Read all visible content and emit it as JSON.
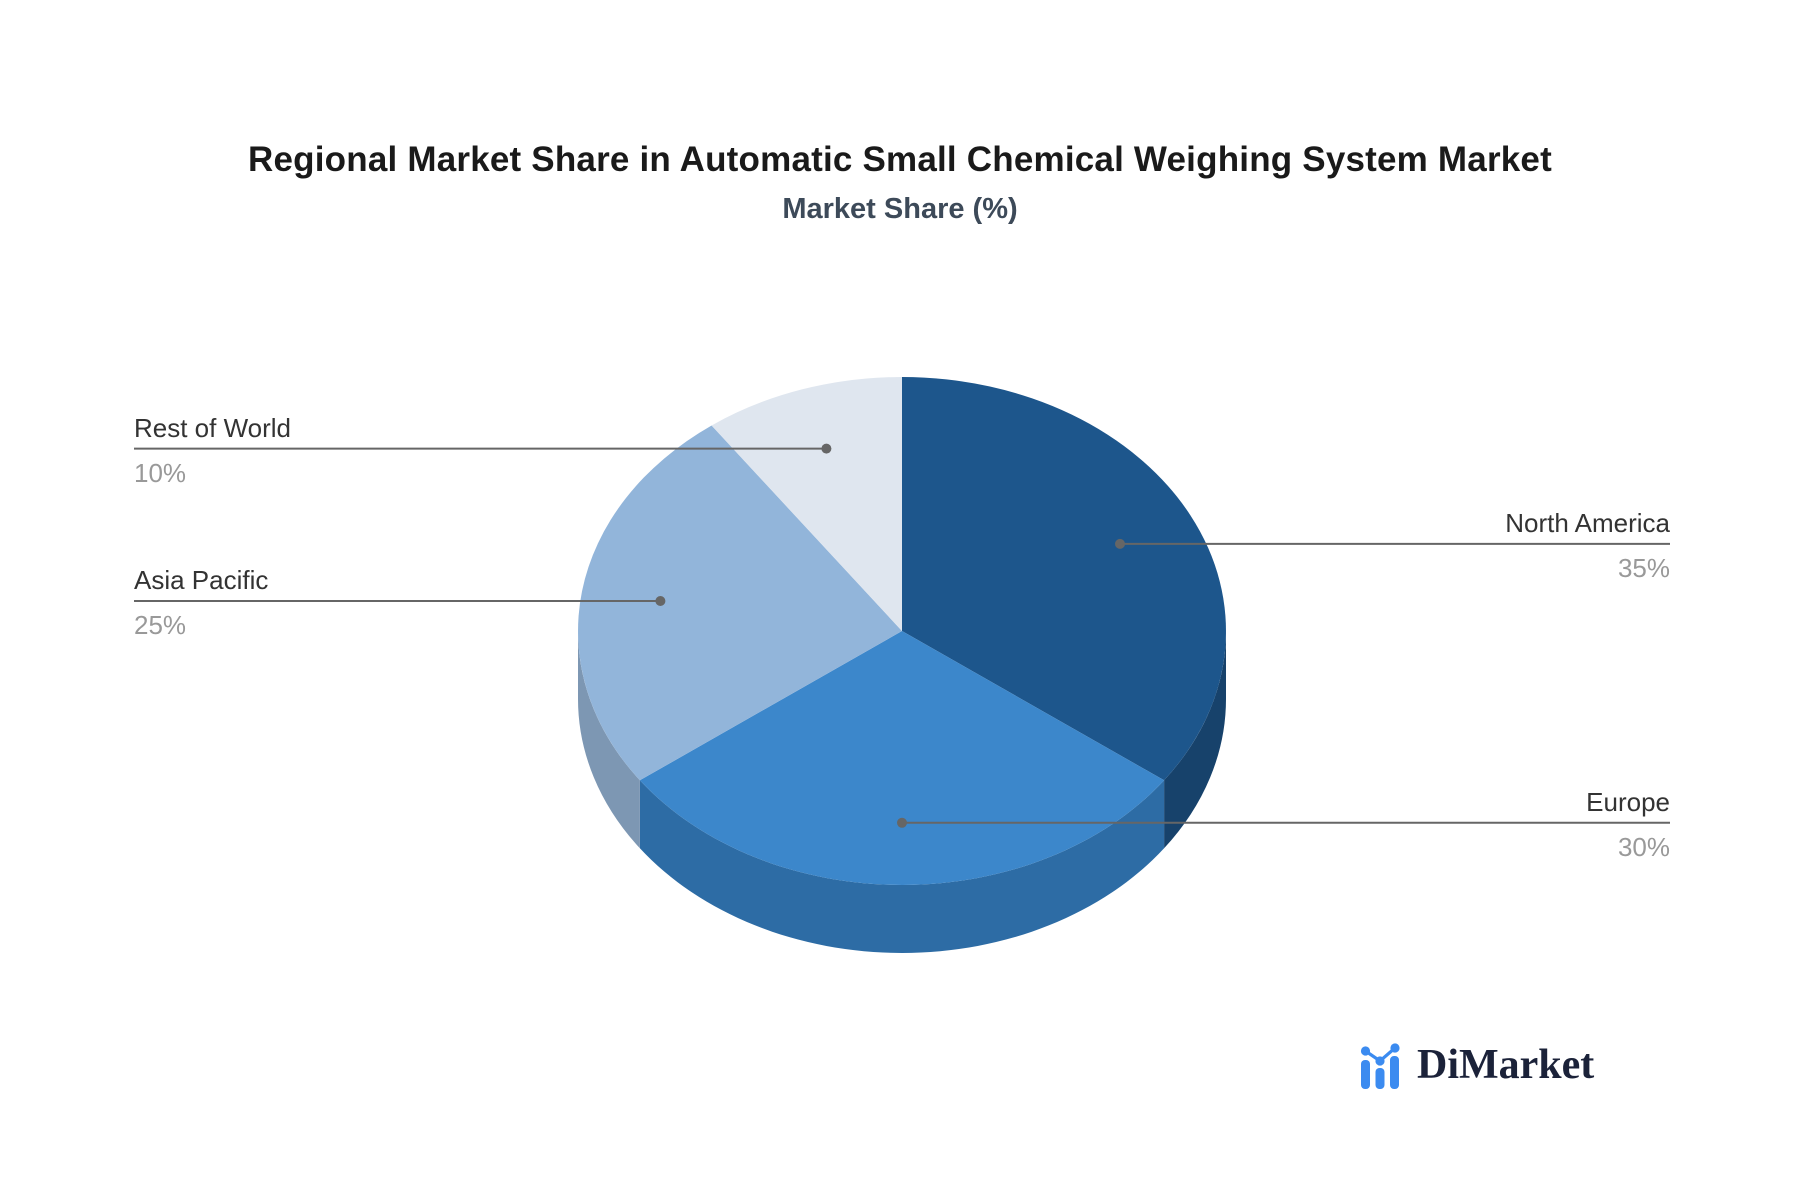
{
  "title": "Regional Market Share in Automatic Small Chemical Weighing System Market",
  "subtitle": "Market Share (%)",
  "chart_data": {
    "type": "pie",
    "style": "3d",
    "unit": "%",
    "start_angle": "top",
    "direction": "clockwise",
    "legend_position": "callout-labels",
    "title": "Regional Market Share in Automatic Small Chemical Weighing System Market",
    "subtitle": "Market Share (%)",
    "slices": [
      {
        "label": "North America",
        "value": 35,
        "pct_label": "35%",
        "color": "#1D568C",
        "side_color": "#17426B",
        "callout": "right"
      },
      {
        "label": "Europe",
        "value": 30,
        "pct_label": "30%",
        "color": "#3C87CB",
        "side_color": "#2D6CA5",
        "callout": "right"
      },
      {
        "label": "Asia Pacific",
        "value": 25,
        "pct_label": "25%",
        "color": "#92B5DA",
        "side_color": "#7D97B3",
        "callout": "left"
      },
      {
        "label": "Rest of World",
        "value": 10,
        "pct_label": "10%",
        "color": "#DFE6EF",
        "side_color": "#C9D3E0",
        "callout": "left"
      }
    ],
    "callout_line_color": "#666666",
    "label_color": "#333333",
    "pct_color": "#999999",
    "background": "#FFFFFF"
  },
  "logo": {
    "text": "DiMarket",
    "icon": "bar-line-chart-icon",
    "icon_color": "#3B8BF0",
    "text_color": "#1B2239"
  }
}
